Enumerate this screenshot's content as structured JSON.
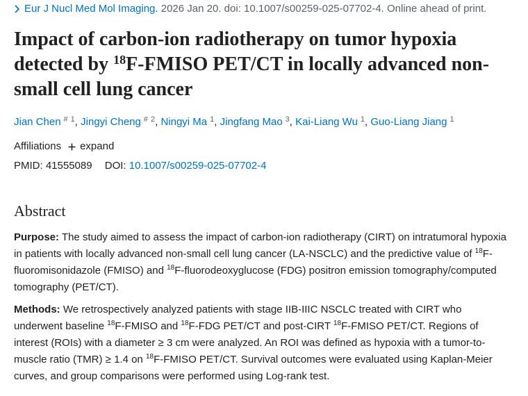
{
  "citation": {
    "journal": "Eur J Nucl Med Mol Imaging.",
    "details": "2026 Jan 20. doi: 10.1007/s00259-025-07702-4. Online ahead of print."
  },
  "title": [
    "Impact of carbon-ion radiotherapy on tumor hypoxia detected by ",
    {
      "sup": "18"
    },
    "F-FMISO PET/CT in locally advanced non-small cell lung cancer"
  ],
  "authors": [
    {
      "name": "Jian Chen",
      "marks": [
        "#",
        "1"
      ]
    },
    {
      "name": "Jingyi Cheng",
      "marks": [
        "#",
        "2"
      ]
    },
    {
      "name": "Ningyi Ma",
      "marks": [
        "1"
      ]
    },
    {
      "name": "Jingfang Mao",
      "marks": [
        "3"
      ]
    },
    {
      "name": "Kai-Liang Wu",
      "marks": [
        "1"
      ]
    },
    {
      "name": "Guo-Liang Jiang",
      "marks": [
        "1"
      ]
    }
  ],
  "affiliations": {
    "label": "Affiliations",
    "toggle": "expand"
  },
  "ids": {
    "pmid_label": "PMID:",
    "pmid": "41555089",
    "doi_label": "DOI:",
    "doi": "10.1007/s00259-025-07702-4"
  },
  "abstract": {
    "heading": "Abstract",
    "sections": [
      {
        "label": "Purpose:",
        "parts": [
          "The study aimed to assess the impact of carbon-ion radiotherapy (CIRT) on intratumoral hypoxia in patients with locally advanced non-small cell lung cancer (LA-NSCLC) and the predictive value of ",
          {
            "sup": "18"
          },
          "F-fluoromisonidazole (FMISO) and ",
          {
            "sup": "18"
          },
          "F-fluorodeoxyglucose (FDG) positron emission tomography/computed tomography (PET/CT)."
        ]
      },
      {
        "label": "Methods:",
        "parts": [
          "We retrospectively analyzed patients with stage IIB-IIIC NSCLC treated with CIRT who underwent baseline ",
          {
            "sup": "18"
          },
          "F-FMISO and ",
          {
            "sup": "18"
          },
          "F-FDG PET/CT and post-CIRT ",
          {
            "sup": "18"
          },
          "F-FMISO PET/CT. Regions of interest (ROIs) with a diameter ≥ 3 cm were analyzed. An ROI was defined as hypoxia with a tumor-to-muscle ratio (TMR) ≥ 1.4 on ",
          {
            "sup": "18"
          },
          "F-FMISO PET/CT. Survival outcomes were evaluated using Kaplan-Meier curves, and group comparisons were performed using Log-rank test."
        ]
      }
    ]
  }
}
